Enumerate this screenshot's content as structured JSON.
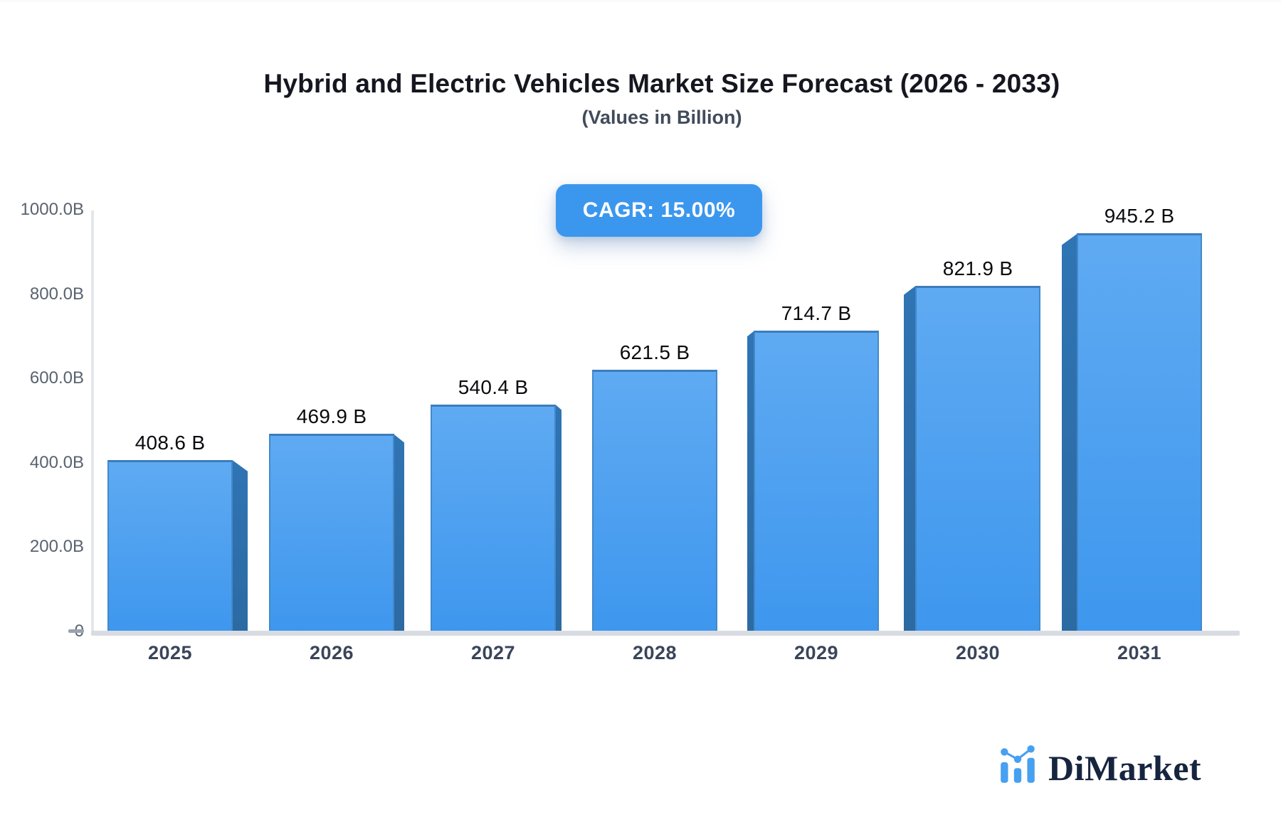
{
  "header": {
    "title": "Hybrid and Electric Vehicles Market Size Forecast (2026 - 2033)",
    "subtitle": "(Values in Billion)",
    "badge": "CAGR: 15.00%"
  },
  "chart_data": {
    "type": "bar",
    "title": "Hybrid and Electric Vehicles Market Size Forecast (2026 - 2033)",
    "subtitle": "(Values in Billion)",
    "annotation": "CAGR: 15.00%",
    "categories": [
      "2025",
      "2026",
      "2027",
      "2028",
      "2029",
      "2030",
      "2031"
    ],
    "values": [
      408.6,
      469.9,
      540.4,
      621.5,
      714.7,
      821.9,
      945.2
    ],
    "value_labels": [
      "408.6 B",
      "469.9 B",
      "540.4 B",
      "621.5 B",
      "714.7 B",
      "821.9 B",
      "945.2 B"
    ],
    "ylim": [
      0,
      1000
    ],
    "yticks": [
      {
        "value": 1000,
        "label": "1000.0B"
      },
      {
        "value": 800,
        "label": "800.0B"
      },
      {
        "value": 600,
        "label": "600.0B"
      },
      {
        "value": 400,
        "label": "400.0B"
      },
      {
        "value": 200,
        "label": "200.0B"
      },
      {
        "value": 0,
        "label": "0"
      }
    ],
    "grid": false,
    "legend": false,
    "bar_style": "3d-perspective, vanishing point at center"
  },
  "branding": {
    "logo_text": "DiMarket"
  },
  "colors": {
    "bar_face_top": "#5FAAF2",
    "bar_face_bottom": "#3E97EE",
    "bar_side_top": "#2F74B4",
    "bar_side_bottom": "#2C6AA3",
    "badge_bg": "#3B97EE",
    "title_text": "#15161f",
    "subtitle_text": "#414b5a",
    "axis_label": "#59626f",
    "x_label": "#3a455a",
    "logo_blue": "#47A0F0",
    "logo_navy": "#16253f"
  }
}
